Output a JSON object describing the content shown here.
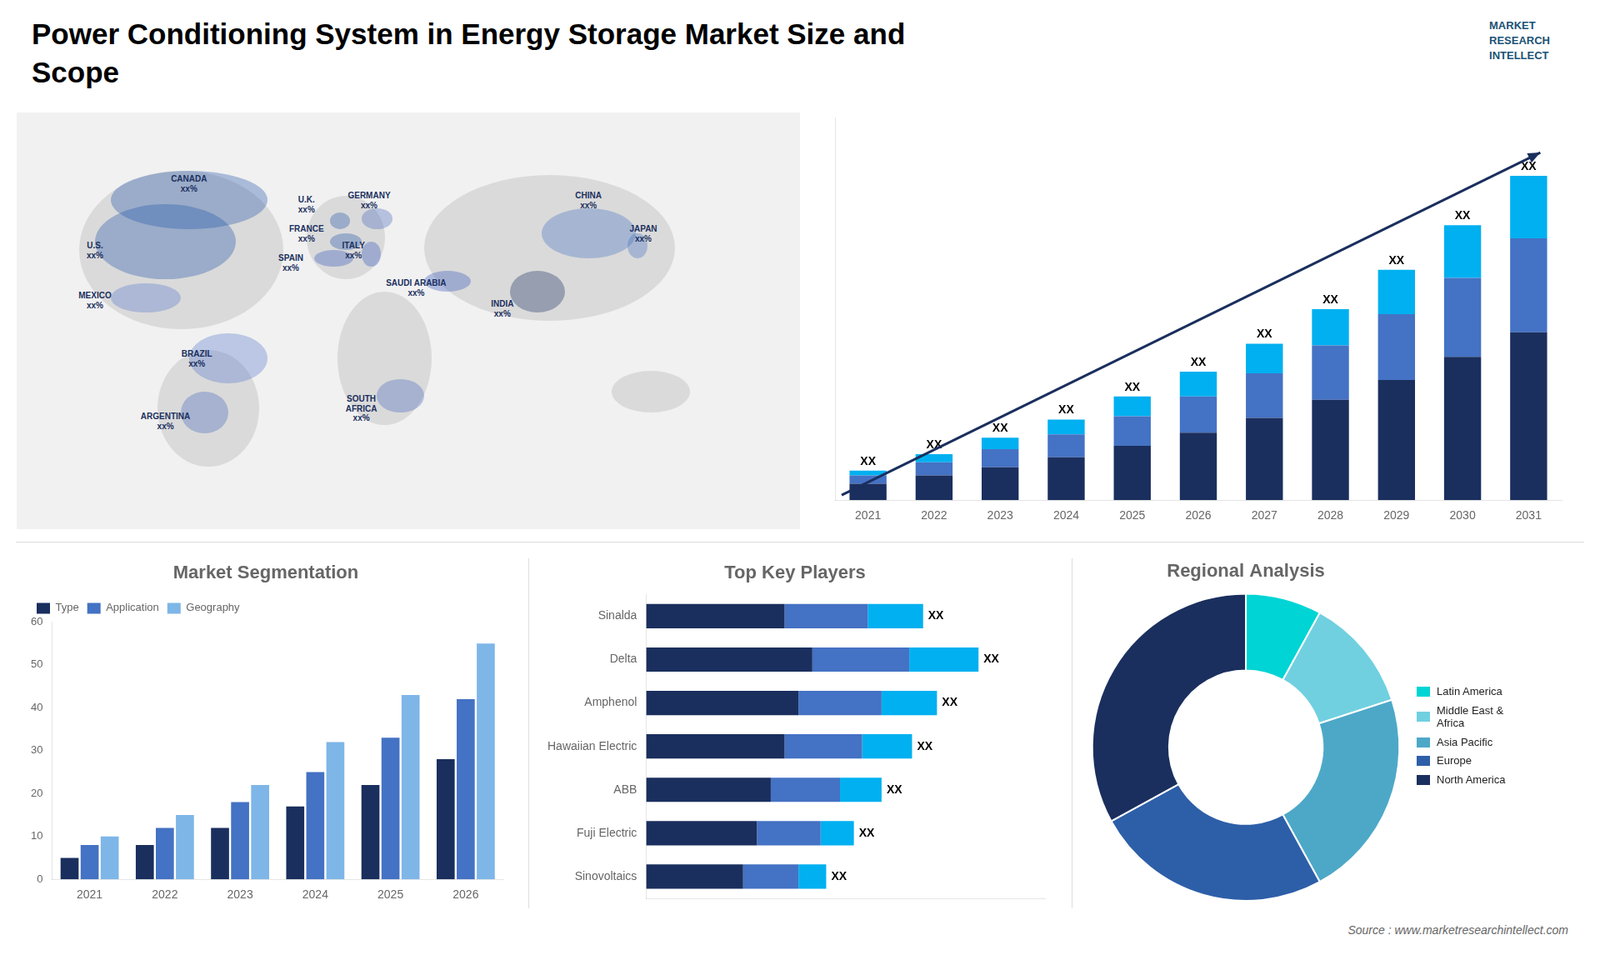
{
  "title": "Power Conditioning System in Energy Storage Market Size and\nScope",
  "annotations": [
    "Source : www.marketresearchintellect.com",
    "MARKET\nRESEARCH\nINTELLECT"
  ],
  "chart_data": [
    {
      "type": "map",
      "annotations": [
        "CANADA\nxx%",
        "U.S.\nxx%",
        "MEXICO\nxx%",
        "BRAZIL\nxx%",
        "ARGENTINA\nxx%",
        "U.K.\nxx%",
        "FRANCE\nxx%",
        "SPAIN\nxx%",
        "GERMANY\nxx%",
        "ITALY\nxx%",
        "SAUDI ARABIA\nxx%",
        "SOUTH\nAFRICA\nxx%",
        "CHINA\nxx%",
        "INDIA\nxx%",
        "JAPAN\nxx%"
      ]
    },
    {
      "type": "bar",
      "stacked": true,
      "categories": [
        "2021",
        "2022",
        "2023",
        "2024",
        "2025",
        "2026",
        "2027",
        "2028",
        "2029",
        "2030",
        "2031"
      ],
      "series": [
        {
          "color": "#1a2f5e",
          "values": [
            1,
            1.5,
            2,
            2.6,
            3.3,
            4.1,
            5.0,
            6.1,
            7.3,
            8.7,
            10.2
          ]
        },
        {
          "color": "#4472c4",
          "values": [
            0.5,
            0.8,
            1.1,
            1.4,
            1.8,
            2.2,
            2.7,
            3.3,
            4.0,
            4.8,
            5.7
          ]
        },
        {
          "color": "#00b0f0",
          "values": [
            0.3,
            0.5,
            0.7,
            0.9,
            1.2,
            1.5,
            1.8,
            2.2,
            2.7,
            3.2,
            3.8
          ]
        }
      ],
      "annotations": [
        "XX",
        "XX",
        "XX",
        "XX",
        "XX",
        "XX",
        "XX",
        "XX",
        "XX",
        "XX",
        "XX"
      ],
      "ylim": [
        0,
        23.246
      ],
      "tick_labels": "x",
      "grid": false
    },
    {
      "type": "bar",
      "title": "Market Segmentation",
      "categories": [
        "2021",
        "2022",
        "2023",
        "2024",
        "2025",
        "2026"
      ],
      "series": [
        {
          "name": "Type",
          "color": "#1a2f5e",
          "values": [
            5,
            8,
            12,
            17,
            22,
            28
          ]
        },
        {
          "name": "Application",
          "color": "#4472c4",
          "values": [
            8,
            12,
            18,
            25,
            33,
            42
          ]
        },
        {
          "name": "Geography",
          "color": "#7eb6e8",
          "values": [
            10,
            15,
            22,
            32,
            43,
            55
          ]
        }
      ],
      "ylim": [
        0,
        60
      ],
      "yticks": [
        0,
        10,
        20,
        30,
        40,
        50,
        60
      ],
      "grid": false,
      "legend": "upper left"
    },
    {
      "type": "bar",
      "title": "Top Key Players",
      "orientation": "horizontal",
      "stacked": true,
      "categories": [
        "Sinalda",
        "Delta",
        "Amphenol",
        "Hawaiian Electric",
        "ABB",
        "Fuji Electric",
        "Sinovoltaics"
      ],
      "series": [
        {
          "color": "#1a2f5e",
          "values": [
            5,
            6,
            5.5,
            5,
            4.5,
            4,
            3.5
          ]
        },
        {
          "color": "#4472c4",
          "values": [
            3,
            3.5,
            3,
            2.8,
            2.5,
            2.3,
            2.0
          ]
        },
        {
          "color": "#00b0f0",
          "values": [
            2,
            2.5,
            2,
            1.8,
            1.5,
            1.2,
            1.0
          ]
        }
      ],
      "annotations": [
        "XX",
        "XX",
        "XX",
        "XX",
        "XX",
        "XX",
        "XX"
      ],
      "xlim": [
        0,
        14.4
      ],
      "tick_labels": "y",
      "grid": false
    },
    {
      "type": "doughnut",
      "title": "Regional Analysis",
      "categories": [
        "Latin America",
        "Middle East &\nAfrica",
        "Asia Pacific",
        "Europe",
        "North America"
      ],
      "values": [
        8,
        12,
        22,
        25,
        33
      ],
      "colors": [
        "#00d4d4",
        "#70d0e0",
        "#4da8c8",
        "#2d5fa8",
        "#1a2f5e"
      ],
      "legend": "right"
    }
  ]
}
